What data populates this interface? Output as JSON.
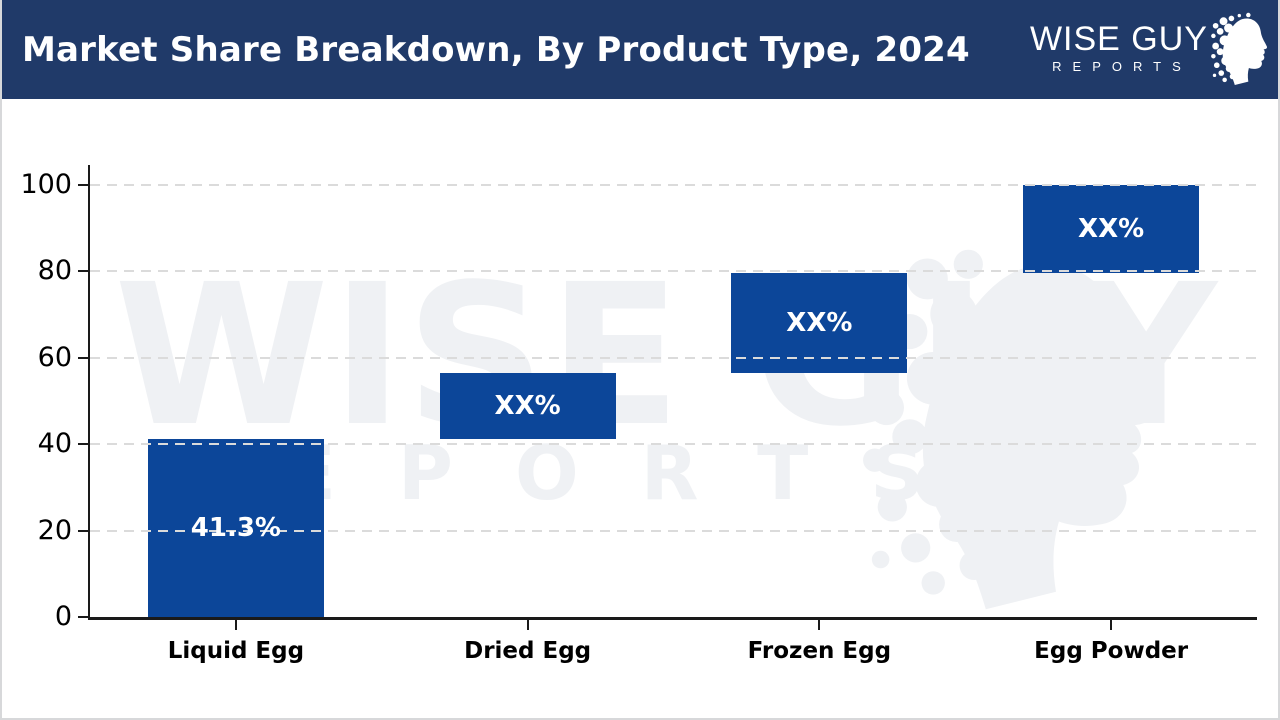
{
  "header": {
    "title": "Market Share Breakdown, By Product Type, 2024",
    "logo": {
      "line1": "WISE GUY",
      "line2": "REPORTS"
    }
  },
  "watermark": {
    "line1": "WISE GUY",
    "line2": "REPORTS"
  },
  "colors": {
    "header_bg": "#203A69",
    "bar": "#0C4699",
    "axis": "#1A1A1A",
    "grid": "#DBDBDB",
    "watermark": "#EFF1F4",
    "title_text": "#FFFFFF",
    "bar_label_text": "#FFFFFF"
  },
  "chart_data": {
    "type": "bar",
    "subtype": "waterfall",
    "title": "Market Share Breakdown, By Product Type, 2024",
    "categories": [
      "Liquid Egg",
      "Dried Egg",
      "Frozen Egg",
      "Egg Powder"
    ],
    "segments": [
      {
        "category": "Liquid Egg",
        "start": 0,
        "end": 41.3,
        "label": "41.3%"
      },
      {
        "category": "Dried Egg",
        "start": 41.3,
        "end": 56.5,
        "label": "XX%"
      },
      {
        "category": "Frozen Egg",
        "start": 56.5,
        "end": 79.6,
        "label": "XX%"
      },
      {
        "category": "Egg Powder",
        "start": 79.6,
        "end": 100,
        "label": "XX%"
      }
    ],
    "ylim": [
      0,
      100
    ],
    "yticks": [
      0,
      20,
      40,
      60,
      80,
      100
    ],
    "xlabel": "",
    "ylabel": "",
    "grid": "horizontal-dashed",
    "legend": "none"
  }
}
